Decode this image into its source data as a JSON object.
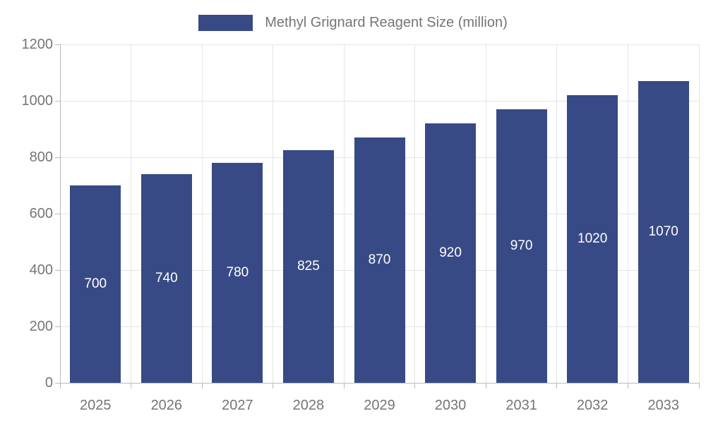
{
  "legend": {
    "label": "Methyl Grignard Reagent Size (million)",
    "swatch_color": "#384a85"
  },
  "chart_data": {
    "type": "bar",
    "title": "",
    "legend_entries": [
      "Methyl Grignard Reagent Size (million)"
    ],
    "legend_position": "top-center",
    "categories": [
      "2025",
      "2026",
      "2027",
      "2028",
      "2029",
      "2030",
      "2031",
      "2032",
      "2033"
    ],
    "values": [
      700,
      740,
      780,
      825,
      870,
      920,
      970,
      1020,
      1070
    ],
    "xlabel": "",
    "ylabel": "",
    "ylim": [
      0,
      1200
    ],
    "yticks": [
      0,
      200,
      400,
      600,
      800,
      1000,
      1200
    ],
    "grid": true,
    "bar_labels_inside": true,
    "colors": {
      "bar": "#384a85",
      "bar_label": "#ffffff",
      "axis_text": "#757575",
      "grid_line": "#e5e5e5",
      "axis_line": "#b9b9b9"
    }
  }
}
